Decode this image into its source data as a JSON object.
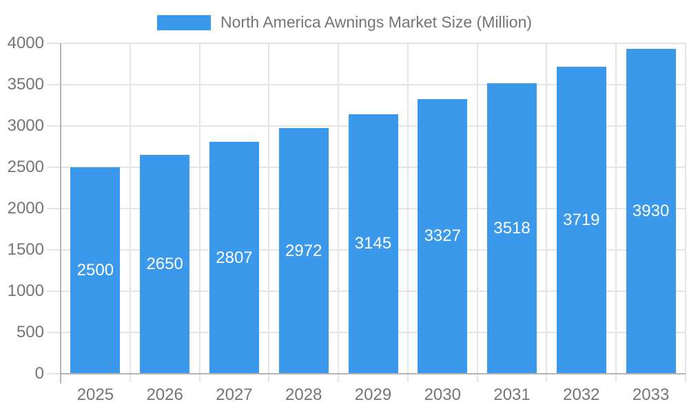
{
  "chart_data": {
    "type": "bar",
    "title": "North America Awnings Market Size (Million)",
    "legend": {
      "position": "top",
      "label": "North America Awnings Market Size (Million)"
    },
    "categories": [
      "2025",
      "2026",
      "2027",
      "2028",
      "2029",
      "2030",
      "2031",
      "2032",
      "2033"
    ],
    "series": [
      {
        "name": "North America Awnings Market Size (Million)",
        "values": [
          2500,
          2650,
          2807,
          2972,
          3145,
          3327,
          3518,
          3719,
          3930
        ]
      }
    ],
    "value_labels_shown": true,
    "xlabel": "",
    "ylabel": "",
    "ylim": [
      0,
      4000
    ],
    "y_ticks": [
      0,
      500,
      1000,
      1500,
      2000,
      2500,
      3000,
      3500,
      4000
    ],
    "grid": true,
    "colors": {
      "bar": "#3B99EC",
      "grid_line": "#E4E4E4",
      "axis_line": "#B3B3B3",
      "axis_text": "#757575",
      "value_label": "#FFFFFF",
      "background": "#FFFFFF"
    }
  }
}
